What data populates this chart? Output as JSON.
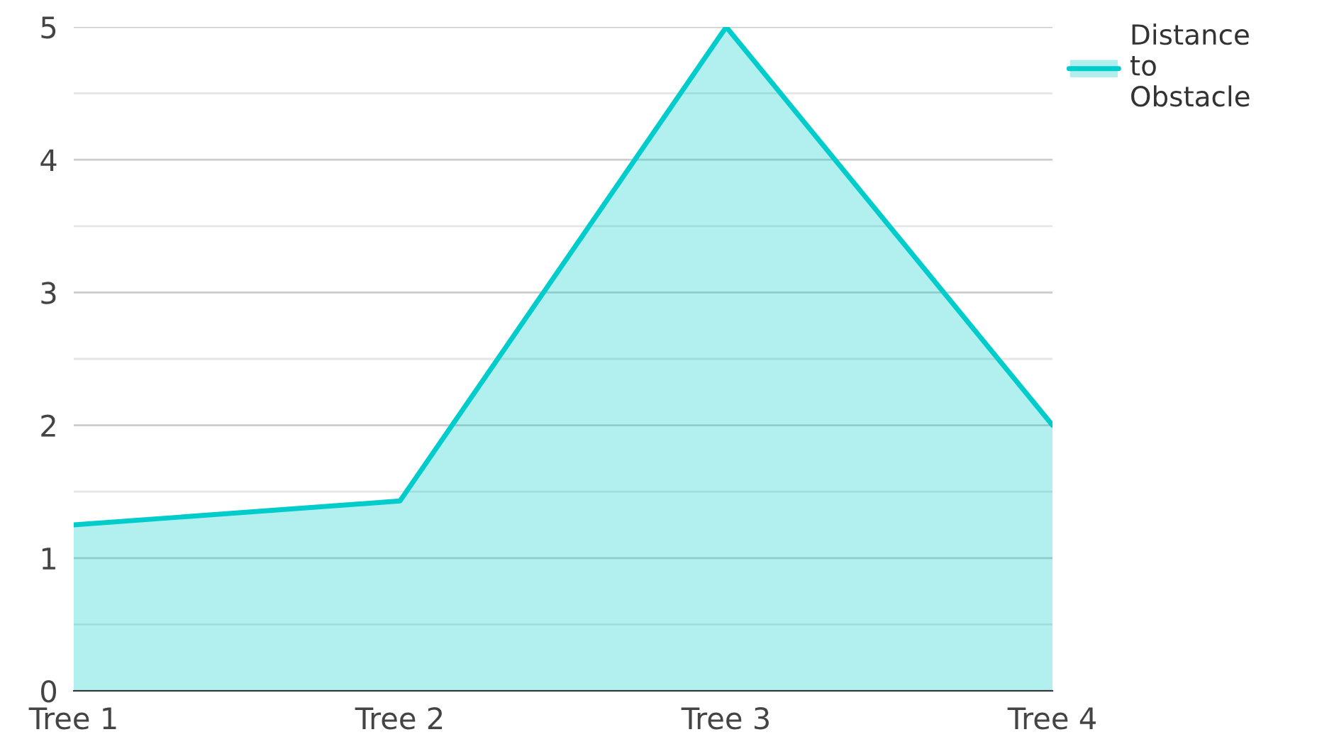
{
  "chart_data": {
    "type": "area",
    "categories": [
      "Tree 1",
      "Tree 2",
      "Tree 3",
      "Tree 4"
    ],
    "series": [
      {
        "name": "Distance\nto\nObstacle",
        "color": "#00cccc",
        "values": [
          1.25,
          1.43,
          5,
          2
        ]
      }
    ],
    "ylim": [
      0,
      5
    ],
    "yticks": [
      0,
      {
        "value": 0.5,
        "label": null
      },
      1,
      {
        "value": 1.5,
        "label": null
      },
      2,
      {
        "value": 2.5,
        "label": null
      },
      3,
      {
        "value": 3.5,
        "label": null
      },
      4,
      {
        "value": 4.5,
        "label": null
      },
      5
    ],
    "grid": "y",
    "legend": "top right",
    "marker": "none",
    "line_style": "solid"
  }
}
